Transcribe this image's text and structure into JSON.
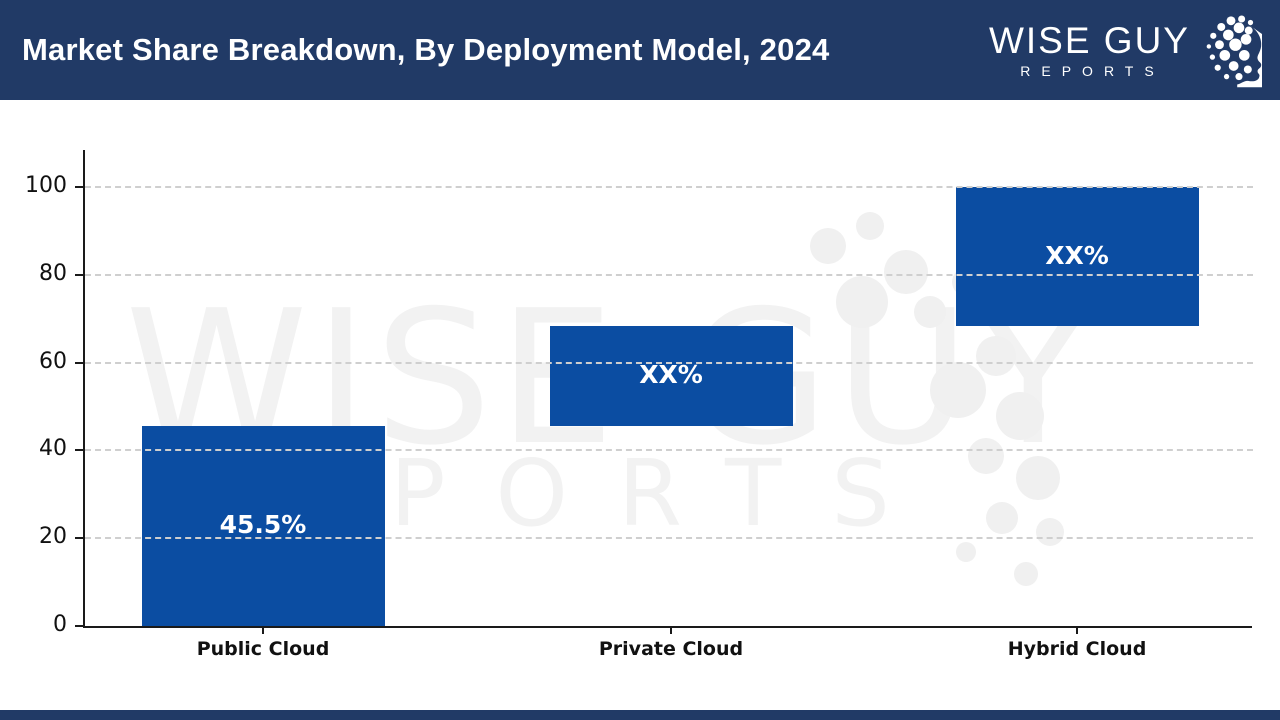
{
  "header": {
    "title": "Market Share Breakdown, By Deployment Model, 2024",
    "logo": {
      "line1": "WISE GUY",
      "line2": "REPORTS"
    }
  },
  "watermark": {
    "line1": "WISE GUY",
    "line2": "REPORTS"
  },
  "chart_data": {
    "type": "bar",
    "subtype": "floating-segment waterfall, single series",
    "title": "Market Share Breakdown, By Deployment Model, 2024",
    "categories": [
      "Public Cloud",
      "Private Cloud",
      "Hybrid Cloud"
    ],
    "segments": [
      {
        "category": "Public Cloud",
        "start": 0,
        "end": 45.5,
        "label": "45.5%"
      },
      {
        "category": "Private Cloud",
        "start": 45.5,
        "end": 68.3,
        "label": "XX%"
      },
      {
        "category": "Hybrid Cloud",
        "start": 68.3,
        "end": 100,
        "label": "XX%"
      }
    ],
    "xlabel": "",
    "ylabel": "",
    "yticks": [
      0,
      20,
      40,
      60,
      80,
      100
    ],
    "ylim": [
      0,
      108
    ],
    "grid": "horizontal dashed, drawn over bars",
    "legend": "none",
    "colors": {
      "bar": "#0b4da2",
      "bar_label": "#ffffff",
      "grid": "#cfcfcf",
      "axis": "#1a1a1a",
      "tick_label": "#111111",
      "header_bg": "#213a66",
      "footer_bg": "#213a66",
      "watermark": "#f2f2f2"
    }
  }
}
